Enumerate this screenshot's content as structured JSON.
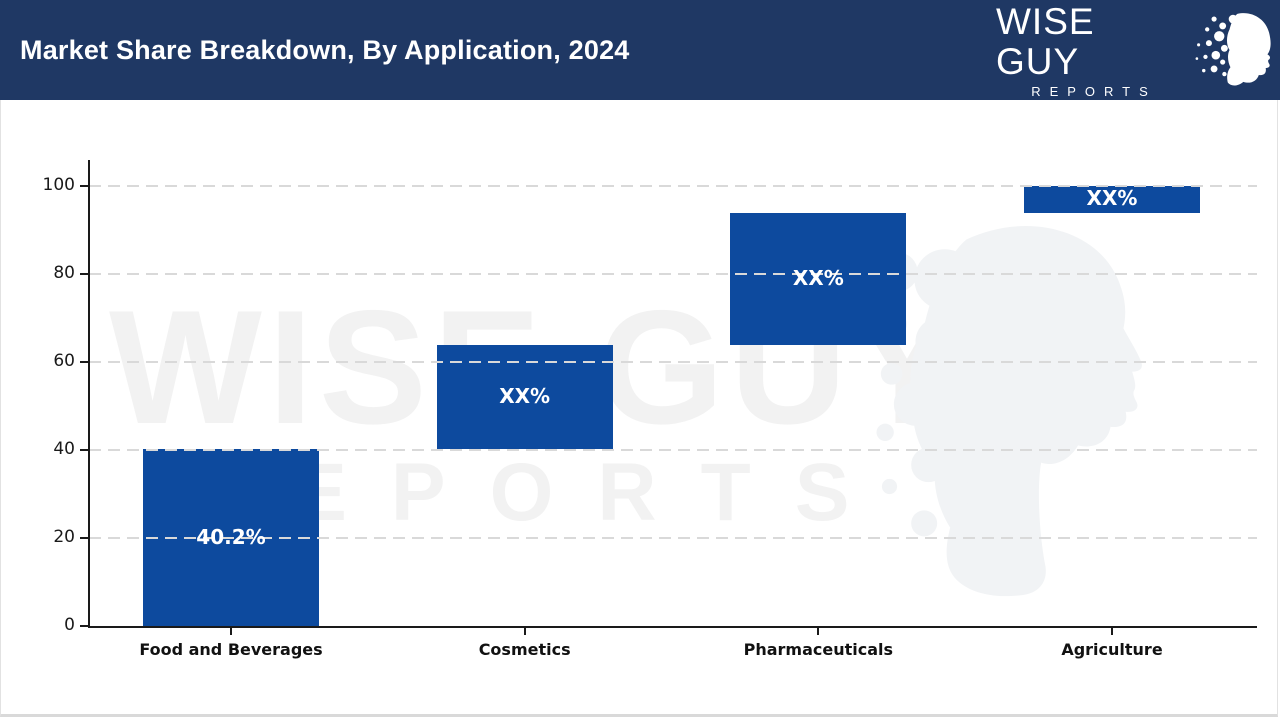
{
  "header": {
    "title": "Market Share Breakdown, By Application, 2024",
    "logo": {
      "line1": "WISE GUY",
      "line2": "REPORTS"
    }
  },
  "watermark": {
    "line1": "WISE GUY",
    "line2": "REPORTS"
  },
  "colors": {
    "header_bg": "#1f3864",
    "bar_fill": "#0d4a9e",
    "gridline": "#d9d9d9",
    "watermark": "#f2f2f2",
    "axis": "#1a1a1a",
    "label_text": "#ffffff"
  },
  "chart_data": {
    "type": "bar",
    "subtype": "waterfall",
    "title": "Market Share Breakdown, By Application, 2024",
    "xlabel": "",
    "ylabel": "",
    "categories": [
      "Food and Beverages",
      "Cosmetics",
      "Pharmaceuticals",
      "Agriculture"
    ],
    "segments": [
      {
        "category": "Food and Beverages",
        "start": 0,
        "end": 40.2,
        "label": "40.2%"
      },
      {
        "category": "Cosmetics",
        "start": 40.2,
        "end": 63.8,
        "label": "XX%"
      },
      {
        "category": "Pharmaceuticals",
        "start": 63.8,
        "end": 93.9,
        "label": "XX%"
      },
      {
        "category": "Agriculture",
        "start": 93.9,
        "end": 100,
        "label": "XX%"
      }
    ],
    "ylim": [
      0,
      100
    ],
    "yticks": [
      0,
      20,
      40,
      60,
      80,
      100
    ],
    "grid": "horizontal-dashed",
    "legend": "none",
    "bar_color": "#0d4a9e",
    "value_labels_masked": true
  }
}
